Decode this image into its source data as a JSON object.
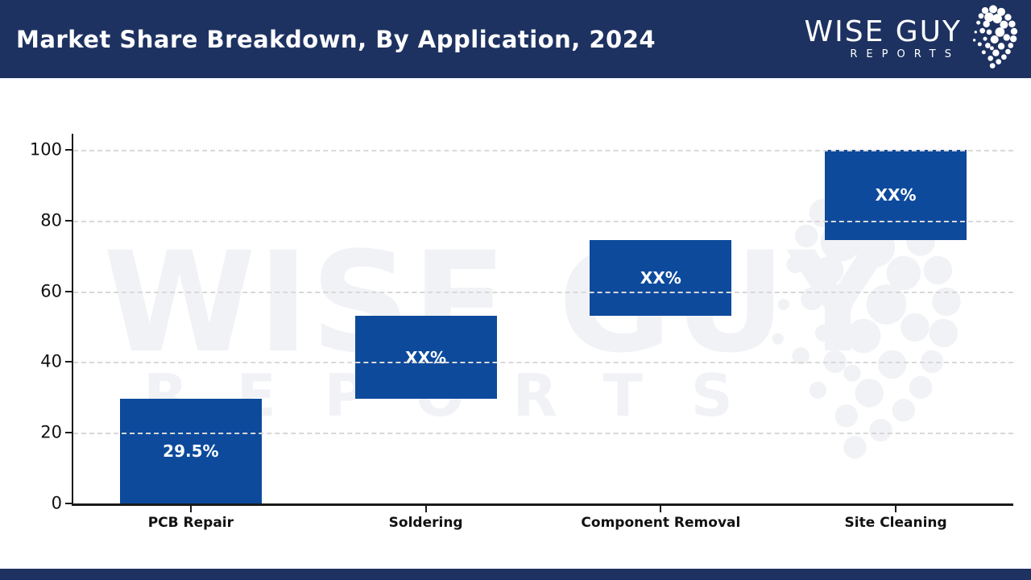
{
  "header": {
    "title": "Market Share Breakdown, By Application, 2024",
    "background_color": "#1e3261",
    "logo": {
      "line1": "WISE GUY",
      "line2": "REPORTS",
      "head_icon": "dotted-head-profile"
    }
  },
  "watermark": {
    "line1": "WISE GUY",
    "line2": "REPORTS",
    "head_icon": "dotted-head-profile",
    "color": "#f1f2f5"
  },
  "chart_data": {
    "type": "bar",
    "subtype": "waterfall",
    "title": "Market Share Breakdown, By Application, 2024",
    "categories": [
      "PCB Repair",
      "Soldering",
      "Component Removal",
      "Site Cleaning"
    ],
    "segments": [
      {
        "category": "PCB Repair",
        "label": "29.5%",
        "start": 0,
        "end": 29.5
      },
      {
        "category": "Soldering",
        "label": "XX%",
        "start": 29.5,
        "end": 53
      },
      {
        "category": "Component Removal",
        "label": "XX%",
        "start": 53,
        "end": 74.5
      },
      {
        "category": "Site Cleaning",
        "label": "XX%",
        "start": 74.5,
        "end": 100
      }
    ],
    "xlabel": "",
    "ylabel": "",
    "ylim": [
      0,
      100
    ],
    "yticks": [
      0,
      20,
      40,
      60,
      80,
      100
    ],
    "grid": "horizontal-dashed",
    "legend": "none",
    "bar_color": "#0d4a9c",
    "bar_label_color": "#ffffff",
    "axis_color": "#1a1a1a"
  },
  "footer": {
    "background_color": "#1e3261"
  }
}
